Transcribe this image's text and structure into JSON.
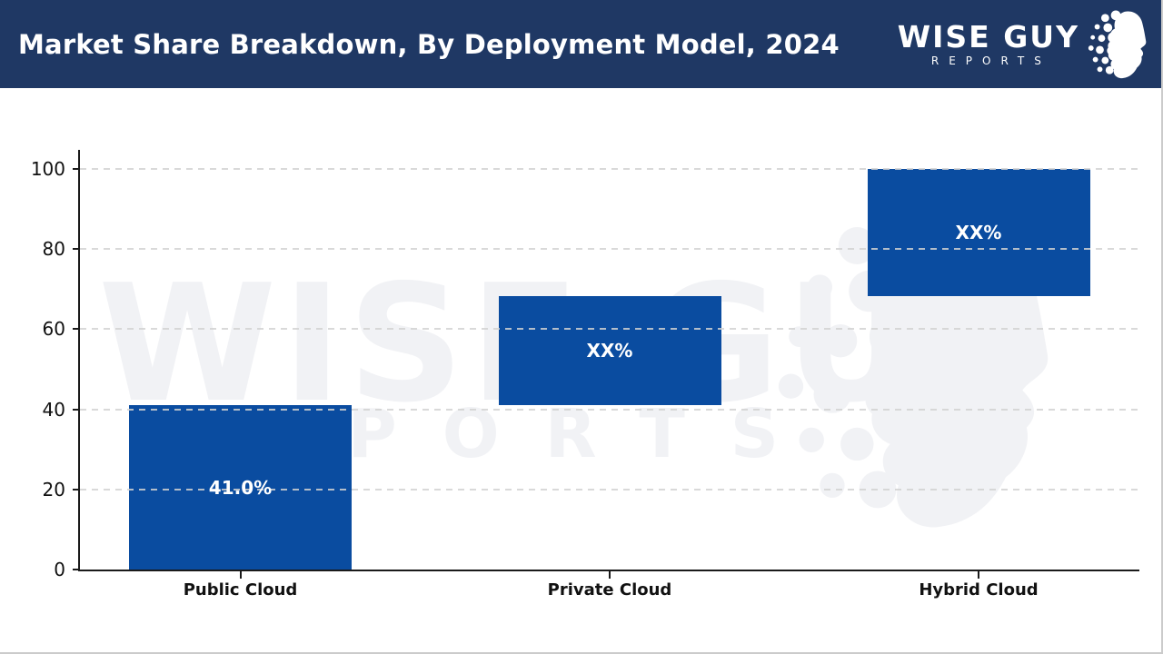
{
  "header": {
    "title": "Market Share Breakdown, By Deployment Model, 2024",
    "logo": {
      "line1": "WISE GUY",
      "line2": "REPORTS"
    }
  },
  "watermark": {
    "line1": "WISE GUY",
    "line2": "REPORTS"
  },
  "chart_data": {
    "type": "bar",
    "subtype": "waterfall",
    "title": "Market Share Breakdown, By Deployment Model, 2024",
    "categories": [
      "Public Cloud",
      "Private Cloud",
      "Hybrid Cloud"
    ],
    "segments": [
      {
        "category": "Public Cloud",
        "start": 0,
        "end": 41.0,
        "size": 41.0,
        "label": "41.0%"
      },
      {
        "category": "Private Cloud",
        "start": 41.0,
        "end": 68.2,
        "size": 27.2,
        "label": "XX%"
      },
      {
        "category": "Hybrid Cloud",
        "start": 68.2,
        "end": 100.0,
        "size": 31.8,
        "label": "XX%"
      }
    ],
    "yticks": [
      0,
      20,
      40,
      60,
      80,
      100
    ],
    "ylim": [
      0,
      100
    ],
    "xlabel": "",
    "ylabel": "",
    "grid": "horizontal-dashed",
    "legend": "none",
    "bar_color": "#0a4ca0",
    "bar_label_color": "#ffffff"
  },
  "colors": {
    "header_bg": "#1f3864",
    "bar": "#0a4ca0",
    "grid": "#d2d2d2",
    "axis": "#1a1a1a",
    "watermark": "#f1f2f5",
    "edge_border": "#cbcbcb"
  }
}
